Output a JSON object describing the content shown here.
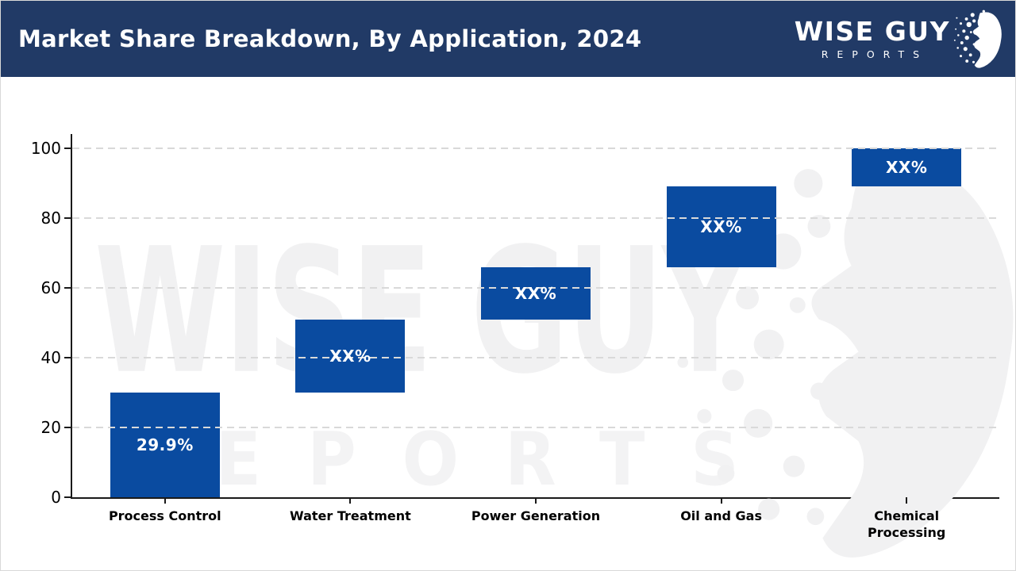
{
  "header": {
    "title": "Market Share Breakdown, By Application, 2024",
    "background_color": "#213a66",
    "logo": {
      "line1": "WISE GUY",
      "line2": "REPORTS"
    }
  },
  "watermark": {
    "line1": "WISE GUY",
    "line2": "REPORTS"
  },
  "chart_data": {
    "type": "bar",
    "variant": "waterfall",
    "title": "Market Share Breakdown, By Application, 2024",
    "categories": [
      "Process Control",
      "Water Treatment",
      "Power Generation",
      "Oil and Gas",
      "Chemical\nProcessing"
    ],
    "segments": [
      {
        "start": 0,
        "end": 29.9,
        "label": "29.9%"
      },
      {
        "start": 29.9,
        "end": 50.8,
        "label": "XX%"
      },
      {
        "start": 50.8,
        "end": 65.9,
        "label": "XX%"
      },
      {
        "start": 65.9,
        "end": 88.9,
        "label": "XX%"
      },
      {
        "start": 88.9,
        "end": 100,
        "label": "XX%"
      }
    ],
    "y_ticks": [
      0,
      20,
      40,
      60,
      80,
      100
    ],
    "ylim": [
      0,
      104
    ],
    "xlabel": "",
    "ylabel": "",
    "legend": "none",
    "grid": {
      "horizontal": true,
      "style": "dashed",
      "color": "#d9d9d9"
    },
    "bar_color": "#0a4ba0",
    "bar_label_color": "#ffffff",
    "axis_color": "#1a1a1a"
  }
}
